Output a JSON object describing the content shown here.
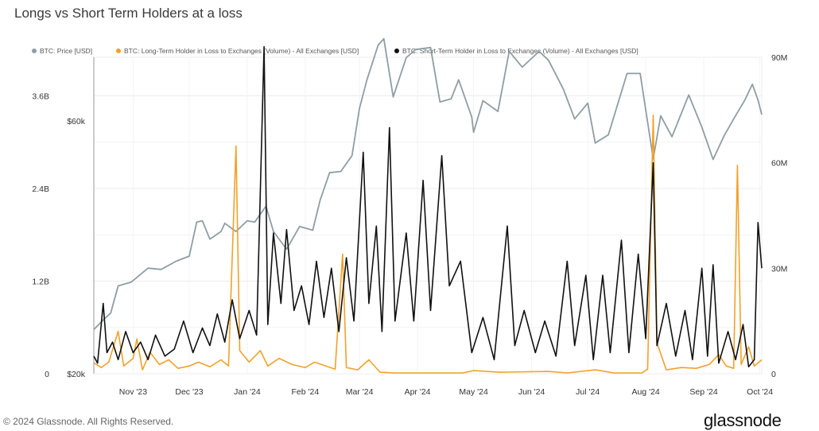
{
  "title": "Longs vs Short Term Holders at a loss",
  "footer": "© 2024 Glassnode. All Rights Reserved.",
  "brand": "glassnode",
  "legend": [
    {
      "label": "BTC: Price [USD]",
      "color": "#8e9ea4"
    },
    {
      "label": "BTC: Long-Term Holder in Loss to Exchanges (Volume) - All Exchanges [USD]",
      "color": "#f2a12a"
    },
    {
      "label": "BTC: Short-Term Holder in Loss to Exchanges (Volume) - All Exchanges [USD]",
      "color": "#111111"
    }
  ],
  "chart_data": {
    "type": "line",
    "title": "Longs vs Short Term Holders at a loss",
    "grid": true,
    "x_start": "2023-10-11",
    "x_end": "2024-10-02",
    "x_ticks": [
      "Nov '23",
      "Dec '23",
      "Jan '24",
      "Feb '24",
      "Mar '24",
      "Apr '24",
      "May '24",
      "Jun '24",
      "Jul '24",
      "Aug '24",
      "Sep '24",
      "Oct '24"
    ],
    "left_axis_ticks": [
      "3.6B",
      "2.4B",
      "1.2B",
      "0"
    ],
    "left_axis_range": [
      0,
      4.1
    ],
    "left_axis_unit": "B",
    "price_axis_ticks": [
      "$60k",
      "$20k"
    ],
    "right_axis_ticks": [
      "90M",
      "60M",
      "30M",
      "0"
    ],
    "right_axis_range": [
      0,
      90
    ],
    "right_axis_unit": "M",
    "series": [
      {
        "name": "BTC: Price [USD]",
        "color": "#8e9ea4",
        "axis": "price",
        "points": [
          [
            "2023-10-11",
            27000
          ],
          [
            "2023-10-16",
            28500
          ],
          [
            "2023-10-20",
            29600
          ],
          [
            "2023-10-24",
            33900
          ],
          [
            "2023-10-31",
            34500
          ],
          [
            "2023-11-09",
            36700
          ],
          [
            "2023-11-16",
            36500
          ],
          [
            "2023-11-24",
            37800
          ],
          [
            "2023-12-01",
            38600
          ],
          [
            "2023-12-05",
            44000
          ],
          [
            "2023-12-08",
            44200
          ],
          [
            "2023-12-12",
            41300
          ],
          [
            "2023-12-18",
            42500
          ],
          [
            "2023-12-20",
            43800
          ],
          [
            "2023-12-26",
            42500
          ],
          [
            "2024-01-01",
            44200
          ],
          [
            "2024-01-05",
            44000
          ],
          [
            "2024-01-11",
            46500
          ],
          [
            "2024-01-15",
            42500
          ],
          [
            "2024-01-22",
            39700
          ],
          [
            "2024-01-29",
            43300
          ],
          [
            "2024-02-05",
            42700
          ],
          [
            "2024-02-09",
            47500
          ],
          [
            "2024-02-14",
            51800
          ],
          [
            "2024-02-20",
            52000
          ],
          [
            "2024-02-26",
            54500
          ],
          [
            "2024-03-01",
            62000
          ],
          [
            "2024-03-05",
            66500
          ],
          [
            "2024-03-11",
            72000
          ],
          [
            "2024-03-14",
            73000
          ],
          [
            "2024-03-19",
            63800
          ],
          [
            "2024-03-26",
            70000
          ],
          [
            "2024-03-31",
            71300
          ],
          [
            "2024-04-08",
            71600
          ],
          [
            "2024-04-13",
            63000
          ],
          [
            "2024-04-19",
            63500
          ],
          [
            "2024-04-23",
            66500
          ],
          [
            "2024-04-30",
            60600
          ],
          [
            "2024-05-01",
            58200
          ],
          [
            "2024-05-06",
            63200
          ],
          [
            "2024-05-14",
            61500
          ],
          [
            "2024-05-20",
            71000
          ],
          [
            "2024-05-27",
            68500
          ],
          [
            "2024-06-05",
            71000
          ],
          [
            "2024-06-10",
            69600
          ],
          [
            "2024-06-18",
            65000
          ],
          [
            "2024-06-24",
            60300
          ],
          [
            "2024-07-01",
            62800
          ],
          [
            "2024-07-05",
            56500
          ],
          [
            "2024-07-12",
            57800
          ],
          [
            "2024-07-22",
            67500
          ],
          [
            "2024-07-29",
            67500
          ],
          [
            "2024-08-05",
            54000
          ],
          [
            "2024-08-09",
            60800
          ],
          [
            "2024-08-15",
            57500
          ],
          [
            "2024-08-24",
            64100
          ],
          [
            "2024-08-31",
            59000
          ],
          [
            "2024-09-06",
            53900
          ],
          [
            "2024-09-12",
            57700
          ],
          [
            "2024-09-17",
            60300
          ],
          [
            "2024-09-23",
            63300
          ],
          [
            "2024-09-27",
            65800
          ],
          [
            "2024-09-30",
            63300
          ],
          [
            "2024-10-02",
            61000
          ]
        ]
      },
      {
        "name": "BTC: Long-Term Holder in Loss to Exchanges (Volume) - All Exchanges [USD]",
        "color": "#f2a12a",
        "axis": "left",
        "points": [
          [
            "2023-10-11",
            0.14
          ],
          [
            "2023-10-15",
            0.08
          ],
          [
            "2023-10-19",
            0.15
          ],
          [
            "2023-10-24",
            0.55
          ],
          [
            "2023-10-27",
            0.1
          ],
          [
            "2023-11-01",
            0.2
          ],
          [
            "2023-11-03",
            0.45
          ],
          [
            "2023-11-06",
            0.05
          ],
          [
            "2023-11-10",
            0.28
          ],
          [
            "2023-11-15",
            0.12
          ],
          [
            "2023-11-20",
            0.18
          ],
          [
            "2023-11-25",
            0.07
          ],
          [
            "2023-12-01",
            0.1
          ],
          [
            "2023-12-06",
            0.15
          ],
          [
            "2023-12-12",
            0.09
          ],
          [
            "2023-12-18",
            0.18
          ],
          [
            "2023-12-22",
            0.1
          ],
          [
            "2023-12-26",
            2.95
          ],
          [
            "2023-12-28",
            0.3
          ],
          [
            "2024-01-02",
            0.15
          ],
          [
            "2024-01-08",
            0.3
          ],
          [
            "2024-01-12",
            0.1
          ],
          [
            "2024-01-18",
            0.2
          ],
          [
            "2024-01-25",
            0.12
          ],
          [
            "2024-02-01",
            0.08
          ],
          [
            "2024-02-06",
            0.15
          ],
          [
            "2024-02-12",
            0.1
          ],
          [
            "2024-02-17",
            0.06
          ],
          [
            "2024-02-21",
            1.55
          ],
          [
            "2024-02-23",
            0.08
          ],
          [
            "2024-02-29",
            0.05
          ],
          [
            "2024-03-06",
            0.18
          ],
          [
            "2024-03-12",
            0.02
          ],
          [
            "2024-03-20",
            0.01
          ],
          [
            "2024-04-05",
            0.01
          ],
          [
            "2024-04-25",
            0.01
          ],
          [
            "2024-05-01",
            0.04
          ],
          [
            "2024-05-15",
            0.02
          ],
          [
            "2024-06-10",
            0.03
          ],
          [
            "2024-06-20",
            0.01
          ],
          [
            "2024-07-05",
            0.05
          ],
          [
            "2024-07-15",
            0.01
          ],
          [
            "2024-07-30",
            0.01
          ],
          [
            "2024-08-02",
            0.06
          ],
          [
            "2024-08-05",
            3.35
          ],
          [
            "2024-08-07",
            0.4
          ],
          [
            "2024-08-12",
            0.05
          ],
          [
            "2024-08-20",
            0.08
          ],
          [
            "2024-08-28",
            0.07
          ],
          [
            "2024-09-04",
            0.12
          ],
          [
            "2024-09-09",
            0.25
          ],
          [
            "2024-09-13",
            0.1
          ],
          [
            "2024-09-17",
            0.07
          ],
          [
            "2024-09-19",
            2.7
          ],
          [
            "2024-09-21",
            0.12
          ],
          [
            "2024-09-25",
            0.35
          ],
          [
            "2024-09-28",
            0.1
          ],
          [
            "2024-10-02",
            0.18
          ]
        ]
      },
      {
        "name": "BTC: Short-Term Holder in Loss to Exchanges (Volume) - All Exchanges [USD]",
        "color": "#111111",
        "axis": "right",
        "points": [
          [
            "2023-10-11",
            5
          ],
          [
            "2023-10-13",
            3
          ],
          [
            "2023-10-16",
            20
          ],
          [
            "2023-10-18",
            6
          ],
          [
            "2023-10-21",
            9
          ],
          [
            "2023-10-24",
            4
          ],
          [
            "2023-10-28",
            12
          ],
          [
            "2023-11-01",
            6
          ],
          [
            "2023-11-05",
            9
          ],
          [
            "2023-11-09",
            4
          ],
          [
            "2023-11-13",
            11
          ],
          [
            "2023-11-18",
            5
          ],
          [
            "2023-11-23",
            7
          ],
          [
            "2023-11-28",
            15
          ],
          [
            "2023-12-03",
            6
          ],
          [
            "2023-12-08",
            13
          ],
          [
            "2023-12-12",
            8
          ],
          [
            "2023-12-16",
            17
          ],
          [
            "2023-12-20",
            9
          ],
          [
            "2023-12-24",
            21
          ],
          [
            "2023-12-28",
            10
          ],
          [
            "2024-01-02",
            18
          ],
          [
            "2024-01-06",
            11
          ],
          [
            "2024-01-10",
            93
          ],
          [
            "2024-01-12",
            14
          ],
          [
            "2024-01-15",
            40
          ],
          [
            "2024-01-19",
            20
          ],
          [
            "2024-01-22",
            41
          ],
          [
            "2024-01-26",
            18
          ],
          [
            "2024-01-30",
            25
          ],
          [
            "2024-02-03",
            14
          ],
          [
            "2024-02-07",
            32
          ],
          [
            "2024-02-11",
            16
          ],
          [
            "2024-02-15",
            30
          ],
          [
            "2024-02-19",
            12
          ],
          [
            "2024-02-23",
            33
          ],
          [
            "2024-02-27",
            15
          ],
          [
            "2024-03-03",
            63
          ],
          [
            "2024-03-06",
            20
          ],
          [
            "2024-03-10",
            42
          ],
          [
            "2024-03-13",
            12
          ],
          [
            "2024-03-17",
            70
          ],
          [
            "2024-03-20",
            15
          ],
          [
            "2024-03-26",
            40
          ],
          [
            "2024-03-30",
            15
          ],
          [
            "2024-04-04",
            55
          ],
          [
            "2024-04-08",
            18
          ],
          [
            "2024-04-14",
            62
          ],
          [
            "2024-04-18",
            25
          ],
          [
            "2024-04-24",
            32
          ],
          [
            "2024-04-30",
            6
          ],
          [
            "2024-05-06",
            16
          ],
          [
            "2024-05-12",
            4
          ],
          [
            "2024-05-19",
            42
          ],
          [
            "2024-05-23",
            8
          ],
          [
            "2024-05-28",
            18
          ],
          [
            "2024-06-03",
            6
          ],
          [
            "2024-06-08",
            15
          ],
          [
            "2024-06-14",
            5
          ],
          [
            "2024-06-20",
            32
          ],
          [
            "2024-06-24",
            8
          ],
          [
            "2024-06-30",
            28
          ],
          [
            "2024-07-04",
            4
          ],
          [
            "2024-07-09",
            28
          ],
          [
            "2024-07-13",
            6
          ],
          [
            "2024-07-19",
            38
          ],
          [
            "2024-07-23",
            6
          ],
          [
            "2024-07-28",
            34
          ],
          [
            "2024-08-01",
            10
          ],
          [
            "2024-08-05",
            60
          ],
          [
            "2024-08-07",
            8
          ],
          [
            "2024-08-12",
            20
          ],
          [
            "2024-08-17",
            5
          ],
          [
            "2024-08-22",
            18
          ],
          [
            "2024-08-26",
            4
          ],
          [
            "2024-08-31",
            30
          ],
          [
            "2024-09-03",
            5
          ],
          [
            "2024-09-06",
            31
          ],
          [
            "2024-09-09",
            3
          ],
          [
            "2024-09-14",
            12
          ],
          [
            "2024-09-18",
            4
          ],
          [
            "2024-09-22",
            14
          ],
          [
            "2024-09-25",
            2
          ],
          [
            "2024-09-28",
            4
          ],
          [
            "2024-09-30",
            43
          ],
          [
            "2024-10-02",
            30
          ]
        ]
      }
    ]
  }
}
